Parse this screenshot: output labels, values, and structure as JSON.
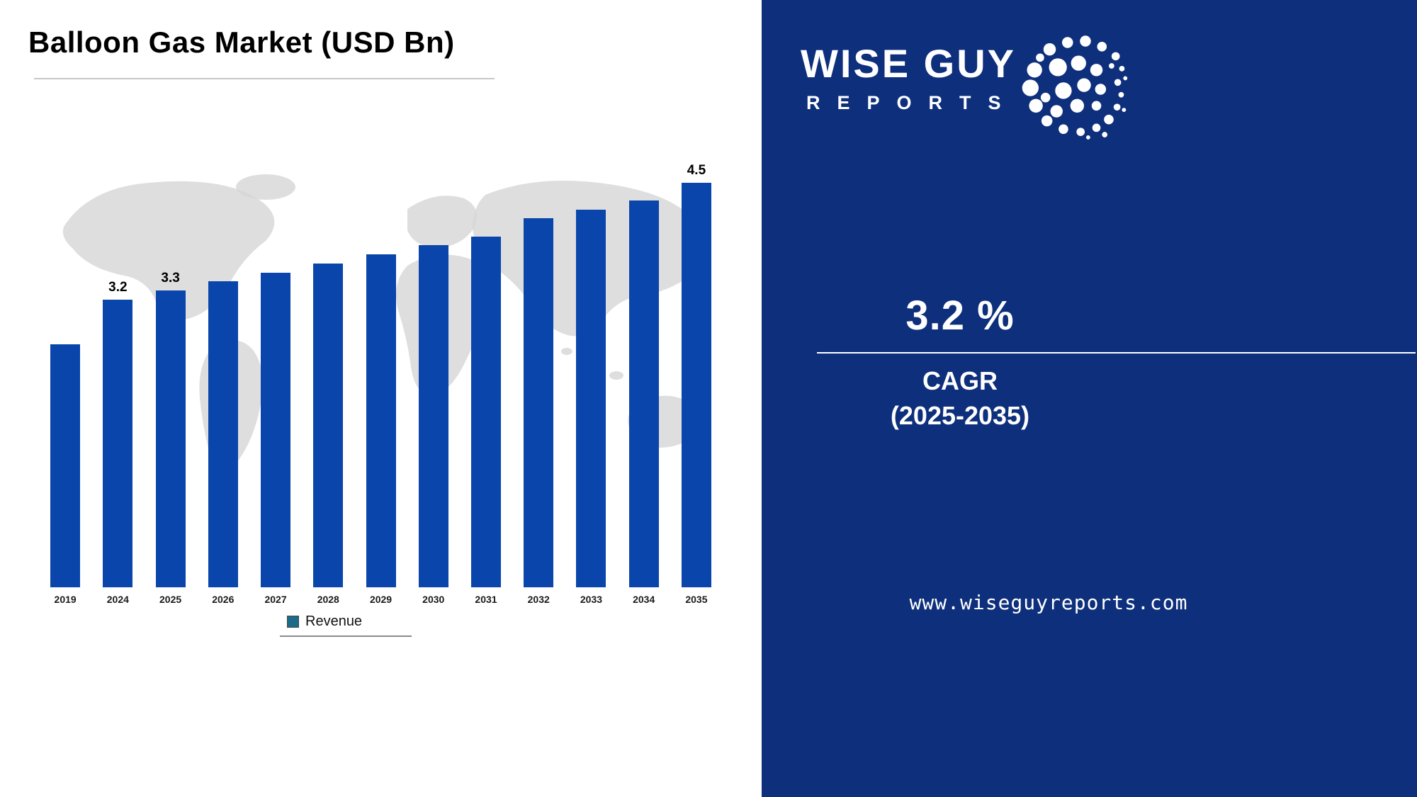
{
  "page": {
    "title": "Balloon Gas Market (USD Bn)"
  },
  "chart_data": {
    "type": "bar",
    "title": "Balloon Gas Market (USD Bn)",
    "categories": [
      "2019",
      "2024",
      "2025",
      "2026",
      "2027",
      "2028",
      "2029",
      "2030",
      "2031",
      "2032",
      "2033",
      "2034",
      "2035"
    ],
    "values": [
      2.7,
      3.2,
      3.3,
      3.4,
      3.5,
      3.6,
      3.7,
      3.8,
      3.9,
      4.1,
      4.2,
      4.3,
      4.5
    ],
    "data_labels": [
      "",
      "3.2",
      "3.3",
      "",
      "",
      "",
      "",
      "",
      "",
      "",
      "",
      "",
      "4.5"
    ],
    "ylim": [
      0,
      5
    ],
    "grid": false,
    "bar_color": "#0a45ab",
    "legend_position": "bottom",
    "legend": [
      {
        "label": "Revenue",
        "color": "#1b6b8a"
      }
    ]
  },
  "sidebar": {
    "background_color": "#0e2f7c",
    "logo_line1": "WISE GUY",
    "logo_line2": "REPORTS",
    "cagr_value": "3.2 %",
    "cagr_label": "CAGR",
    "cagr_period": "(2025-2035)",
    "website": "www.wiseguyreports.com"
  }
}
